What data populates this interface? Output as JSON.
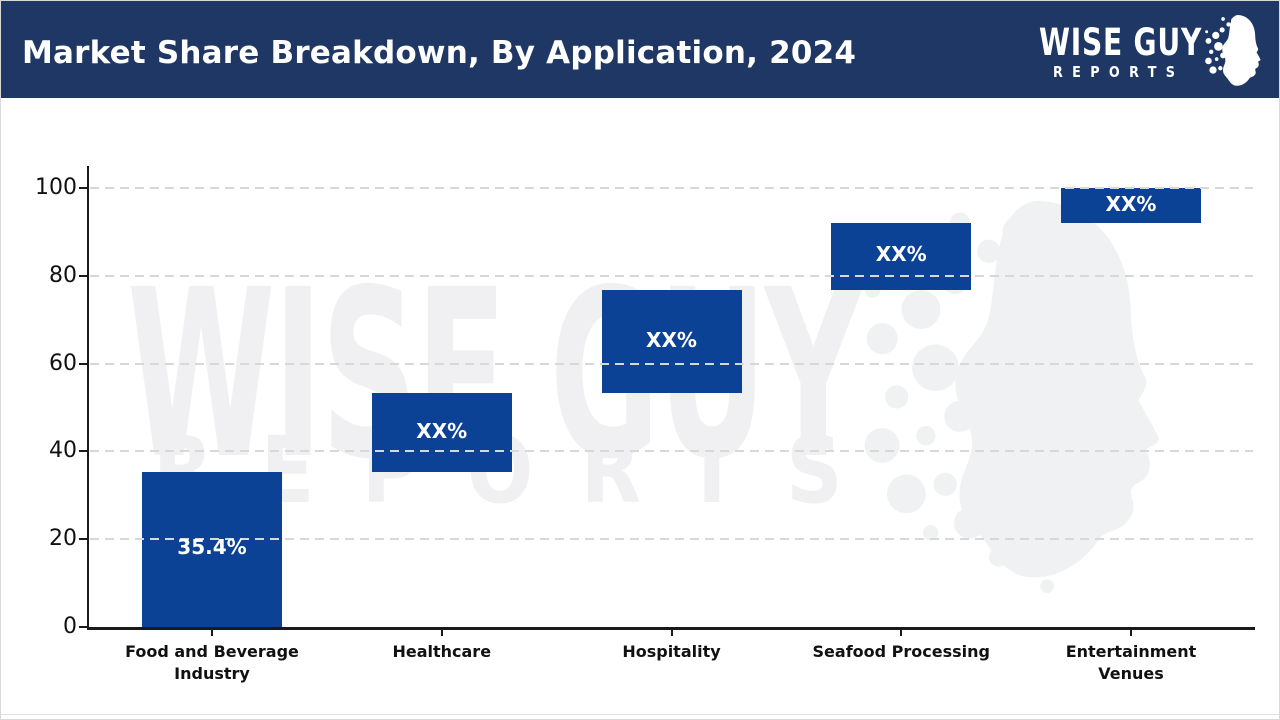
{
  "header": {
    "title": "Market Share Breakdown, By Application, 2024",
    "bg_color": "#1f3764",
    "logo": {
      "line1": "WISE GUY",
      "line2": "REPORTS"
    }
  },
  "watermark": {
    "line1": "WISE GUY",
    "line2": "REPORTS"
  },
  "chart_data": {
    "type": "bar",
    "subtype": "waterfall-stacked-breakdown",
    "title": "Market Share Breakdown, By Application, 2024",
    "categories": [
      "Food and Beverage\nIndustry",
      "Healthcare",
      "Hospitality",
      "Seafood Processing",
      "Entertainment\nVenues"
    ],
    "segments": [
      {
        "category": "Food and Beverage Industry",
        "start": 0,
        "end": 35.4,
        "value": 35.4,
        "label": "35.4%"
      },
      {
        "category": "Healthcare",
        "start": 35.4,
        "end": 53.2,
        "value": 17.8,
        "label": "XX%"
      },
      {
        "category": "Hospitality",
        "start": 53.2,
        "end": 76.8,
        "value": 23.6,
        "label": "XX%"
      },
      {
        "category": "Seafood Processing",
        "start": 76.8,
        "end": 92,
        "value": 15.2,
        "label": "XX%"
      },
      {
        "category": "Entertainment Venues",
        "start": 92,
        "end": 100,
        "value": 8,
        "label": "XX%"
      }
    ],
    "xlabel": "",
    "ylabel": "",
    "ylim": [
      0,
      105
    ],
    "yticks": [
      0,
      20,
      40,
      60,
      80,
      100
    ],
    "grid": "dashed-horizontal, drawn above bars",
    "legend": "none",
    "bar_color": "#0b4296",
    "label_color": "#ffffff"
  }
}
